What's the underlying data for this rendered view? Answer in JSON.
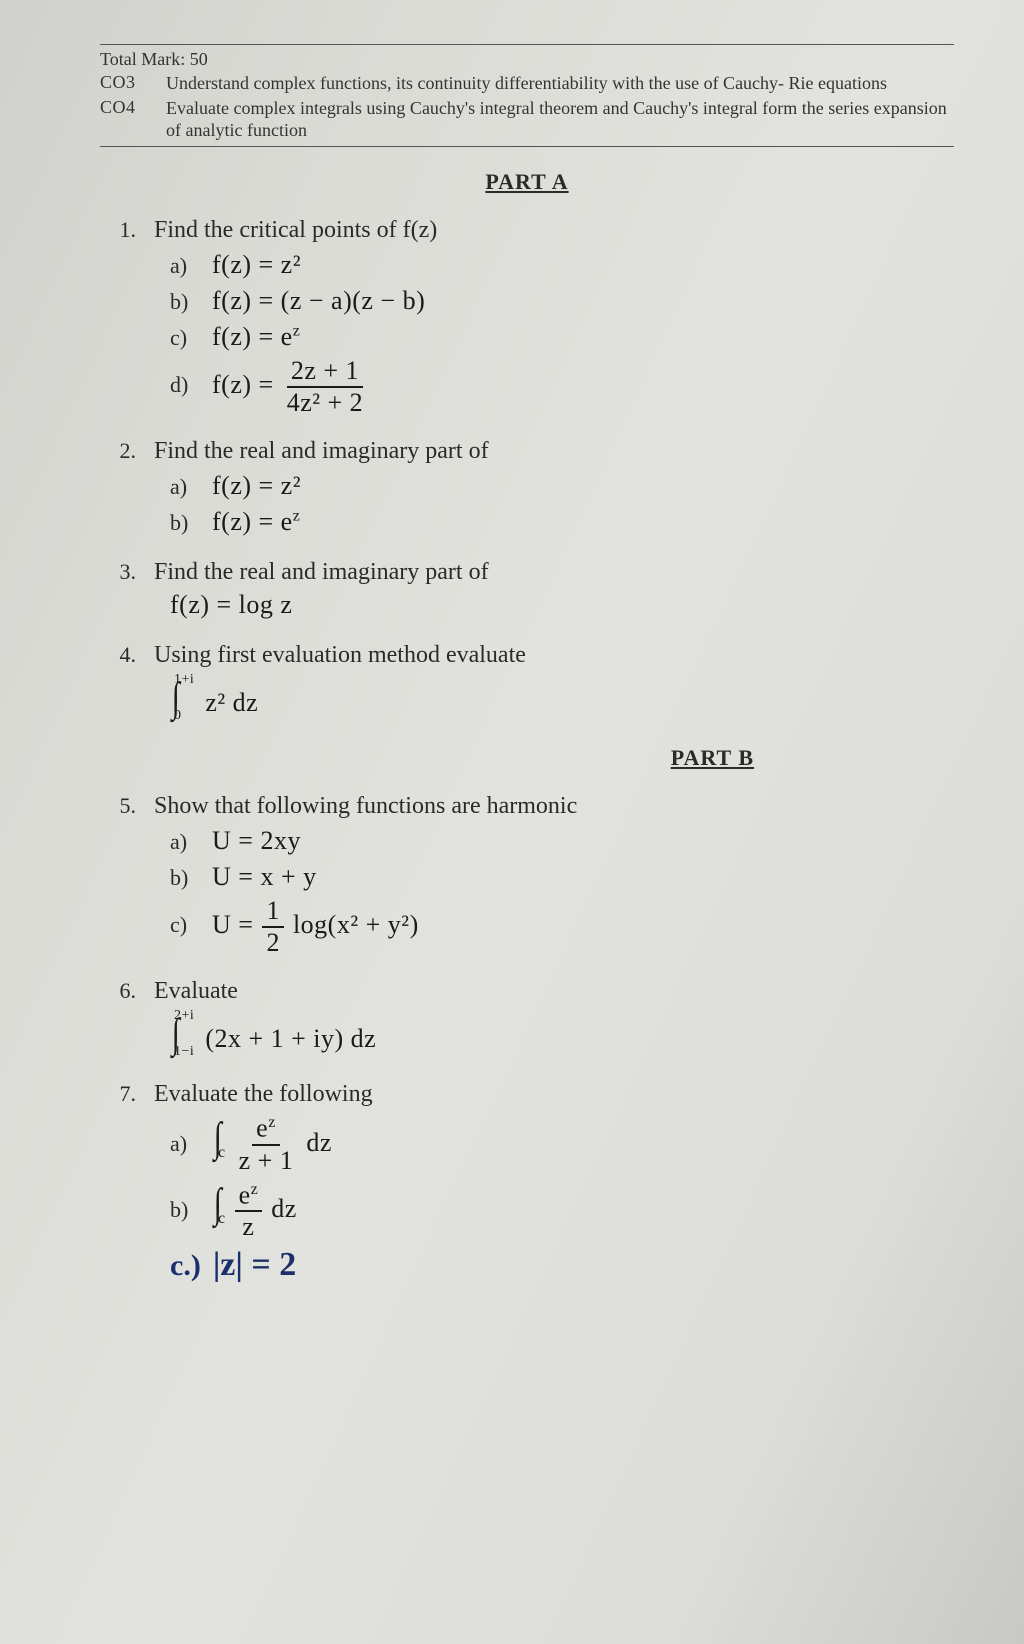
{
  "header": {
    "total_mark": "Total Mark: 50",
    "co3_label": "CO3",
    "co3_text": "Understand complex functions, its continuity differentiability with the use of Cauchy- Rie equations",
    "co4_label": "CO4",
    "co4_text": "Evaluate complex integrals using Cauchy's integral theorem and Cauchy's integral form the series expansion of analytic function"
  },
  "partA": {
    "heading": "PART A",
    "q1": {
      "num": "1.",
      "text": "Find the critical points of f(z)",
      "a_label": "a)",
      "a_formula": "f(z) = z²",
      "b_label": "b)",
      "b_formula": "f(z) = (z − a)(z − b)",
      "c_label": "c)",
      "c_formula_lhs": "f(z) = e",
      "c_exp": "z",
      "d_label": "d)",
      "d_lhs": "f(z) =",
      "d_num": "2z + 1",
      "d_den": "4z² + 2"
    },
    "q2": {
      "num": "2.",
      "text": "Find the real and imaginary part of",
      "a_label": "a)",
      "a_formula": "f(z) = z²",
      "b_label": "b)",
      "b_formula_lhs": "f(z) = e",
      "b_exp": "z"
    },
    "q3": {
      "num": "3.",
      "text": "Find the real and imaginary part of",
      "formula": "f(z) = log z"
    },
    "q4": {
      "num": "4.",
      "text": "Using first evaluation method evaluate",
      "upper": "1+i",
      "lower": "0",
      "integrand": "z² dz"
    }
  },
  "partB": {
    "heading": "PART B",
    "q5": {
      "num": "5.",
      "text": "Show that following functions are harmonic",
      "a_label": "a)",
      "a_formula": "U = 2xy",
      "b_label": "b)",
      "b_formula": "U = x + y",
      "c_label": "c)",
      "c_lhs": "U =",
      "c_num": "1",
      "c_den": "2",
      "c_rest": "log(x² + y²)"
    },
    "q6": {
      "num": "6.",
      "text": "Evaluate",
      "upper": "2+i",
      "lower": "1−i",
      "integrand": "(2x + 1 + iy) dz"
    },
    "q7": {
      "num": "7.",
      "text": "Evaluate the following",
      "a_label": "a)",
      "a_sub": "c",
      "a_num_l": "e",
      "a_num_exp": "z",
      "a_den": "z + 1",
      "a_tail": "dz",
      "b_label": "b)",
      "b_sub": "c",
      "b_num_l": "e",
      "b_num_exp": "z",
      "b_den": "z",
      "b_tail": "dz",
      "c_label": "c.)",
      "c_formula": "|z| = 2"
    }
  },
  "colors": {
    "text": "#2a2a2a",
    "handwriting": "#1a1a1a",
    "blue_ink": "#1b2f6b",
    "paper_light": "#e2e2de",
    "paper_dark": "#c8c8c4"
  }
}
